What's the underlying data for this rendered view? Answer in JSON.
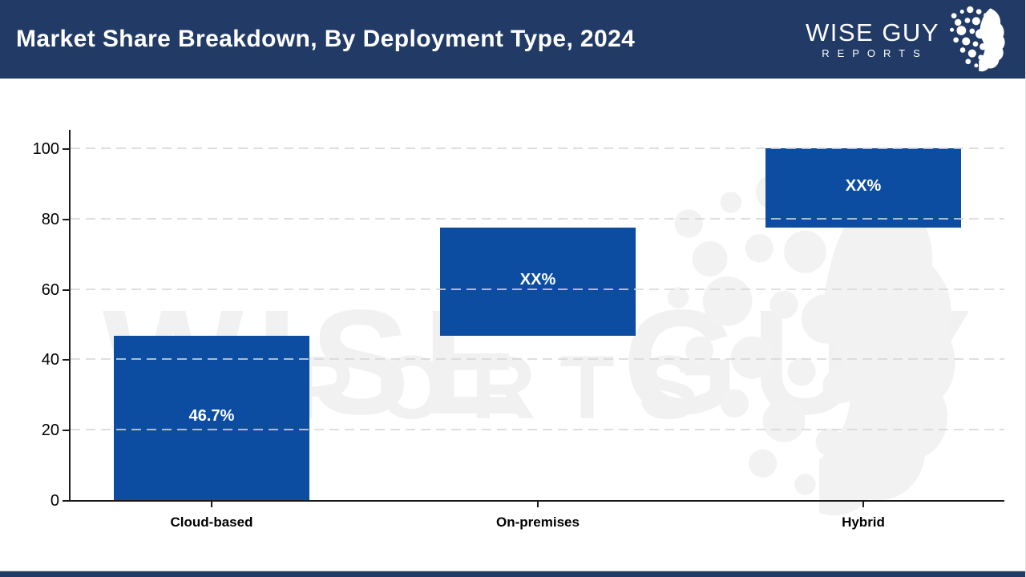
{
  "header": {
    "title": "Market Share Breakdown, By Deployment Type, 2024",
    "bg_color": "#213a66",
    "text_color": "#ffffff",
    "logo": {
      "wordmark": "WISE GUY",
      "subtext": "REPORTS"
    }
  },
  "watermark": {
    "line1": "WISE GUY",
    "line2": "REPORTS"
  },
  "chart_data": {
    "type": "bar",
    "subtype": "floating-segment (waterfall-style market share)",
    "title": "Market Share Breakdown, By Deployment Type, 2024",
    "categories": [
      "Cloud-based",
      "On-premises",
      "Hybrid"
    ],
    "segments": [
      {
        "category": "Cloud-based",
        "start": 0,
        "end": 46.7,
        "label": "46.7%"
      },
      {
        "category": "On-premises",
        "start": 46.7,
        "end": 77.5,
        "label": "XX%"
      },
      {
        "category": "Hybrid",
        "start": 77.5,
        "end": 100,
        "label": "XX%"
      }
    ],
    "yticks": [
      0,
      20,
      40,
      60,
      80,
      100
    ],
    "ylim": [
      0,
      100
    ],
    "xlabel": "",
    "ylabel": "",
    "grid": "dashed-horizontal",
    "legend": "none",
    "bar_color": "#0c4da2",
    "bar_label_color": "#ffffff",
    "axis_color": "#1a1a1a",
    "gridline_color": "#d7d7d7"
  },
  "footer": {
    "bg_color": "#213a66"
  }
}
